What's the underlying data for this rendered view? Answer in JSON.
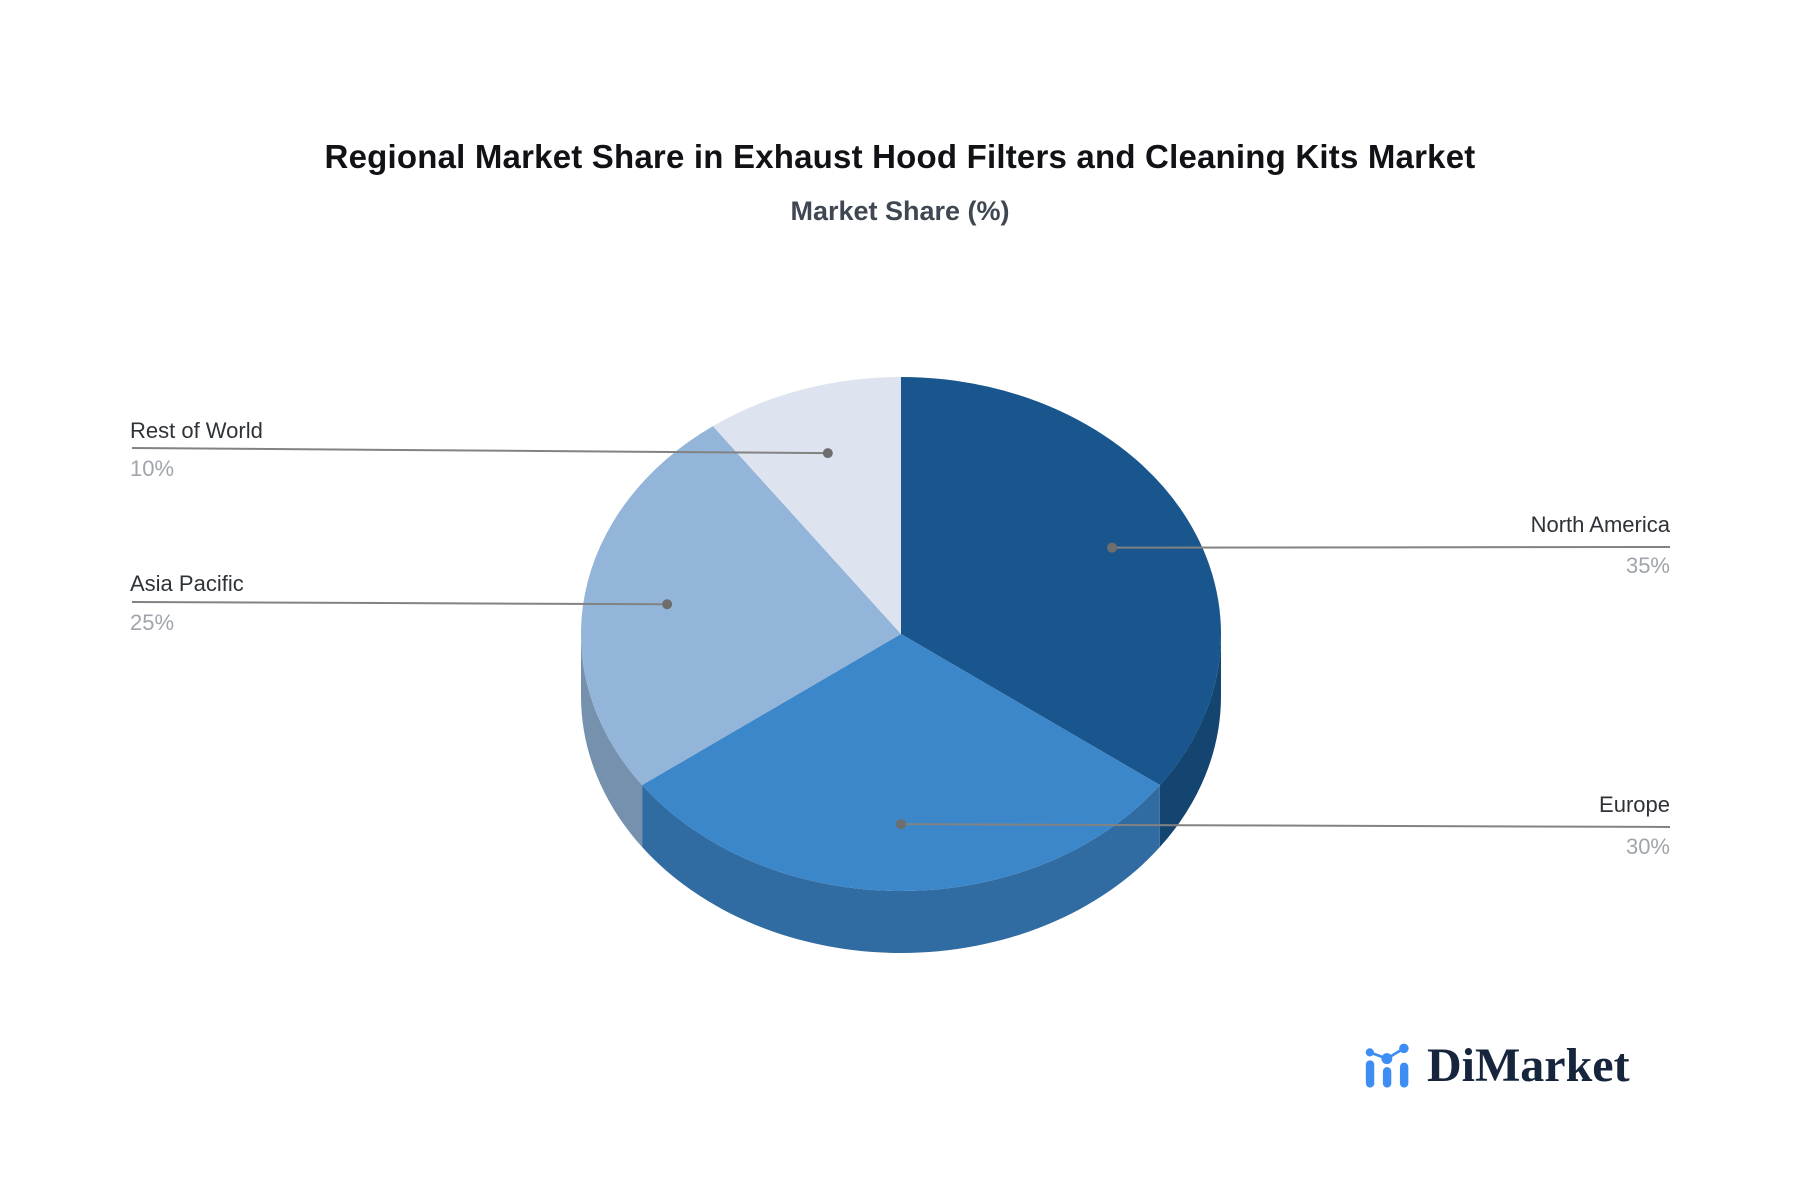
{
  "title": "Regional Market Share in Exhaust Hood Filters and Cleaning Kits Market",
  "subtitle": "Market Share (%)",
  "brand": {
    "name": "DiMarket"
  },
  "chart_data": {
    "type": "pie",
    "style": "3d",
    "unit": "%",
    "start_angle": "top",
    "direction": "clockwise",
    "legend_position": "none",
    "label_style": "leader-lines",
    "slices": [
      {
        "label": "North America",
        "value": 35,
        "pct_label": "35%",
        "color": "#19568d"
      },
      {
        "label": "Europe",
        "value": 30,
        "pct_label": "30%",
        "color": "#3c87ca"
      },
      {
        "label": "Asia Pacific",
        "value": 25,
        "pct_label": "25%",
        "color": "#93b5d9"
      },
      {
        "label": "Rest of World",
        "value": 10,
        "pct_label": "10%",
        "color": "#dde4ef"
      }
    ]
  },
  "colors": {
    "background": "#ffffff",
    "leader_line": "#828282",
    "anchor_dot": "#6e6e6e",
    "label_text": "#2f3338",
    "pct_text": "#a0a5ac",
    "title_text": "#101215",
    "subtitle_text": "#3f4752",
    "logo_blue": "#3d8df2",
    "logo_navy": "#16243c"
  }
}
